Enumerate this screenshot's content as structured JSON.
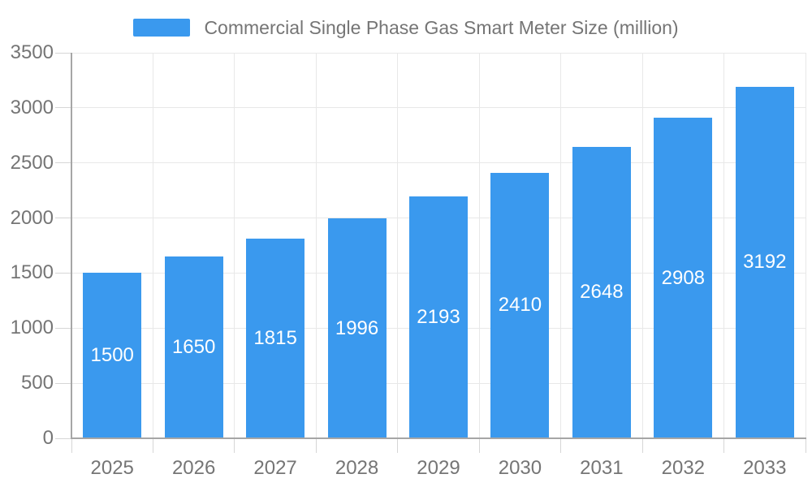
{
  "legend": {
    "label": "Commercial Single Phase Gas Smart Meter Size (million)"
  },
  "chart_data": {
    "type": "bar",
    "title": "Commercial Single Phase Gas Smart Meter Size (million)",
    "categories": [
      "2025",
      "2026",
      "2027",
      "2028",
      "2029",
      "2030",
      "2031",
      "2032",
      "2033"
    ],
    "values": [
      1500,
      1650,
      1815,
      1996,
      2193,
      2410,
      2648,
      2908,
      3192
    ],
    "series": [
      {
        "name": "Commercial Single Phase Gas Smart Meter Size (million)",
        "values": [
          1500,
          1650,
          1815,
          1996,
          2193,
          2410,
          2648,
          2908,
          3192
        ]
      }
    ],
    "xlabel": "",
    "ylabel": "",
    "ylim": [
      0,
      3500
    ],
    "ytick_interval": 500,
    "ytick_labels": [
      "0",
      "500",
      "1000",
      "1500",
      "2000",
      "2500",
      "3000",
      "3500"
    ],
    "grid": true,
    "legend_position": "top-center",
    "value_label_position": "inside-center",
    "colors": {
      "bar": "#3a99ee",
      "value_label": "#ffffff",
      "axis_text": "#757575",
      "legend_text": "#757575",
      "gridline": "#e8e8e8",
      "tick": "#d6d6d6",
      "axis_line": "#a6a6a6",
      "background": "#ffffff"
    }
  }
}
